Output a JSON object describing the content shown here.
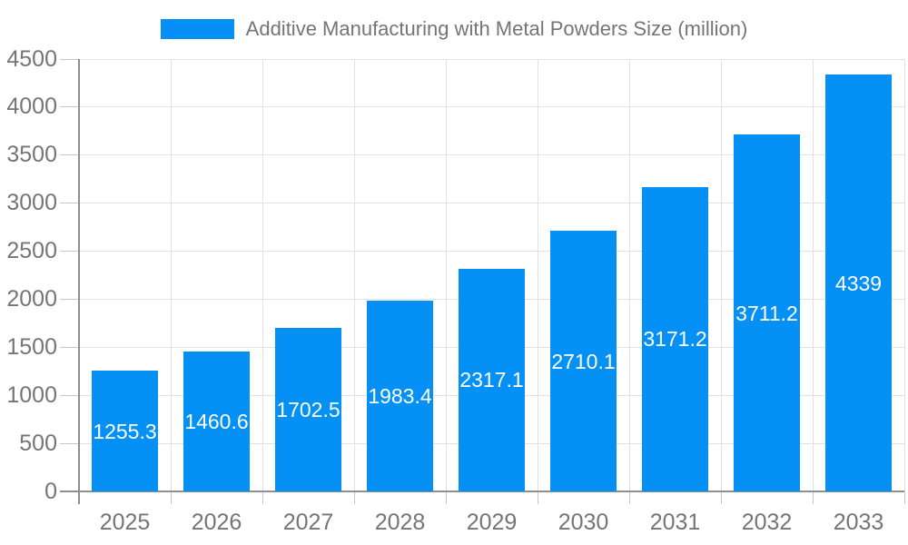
{
  "chart_data": {
    "type": "bar",
    "title": "Additive Manufacturing with Metal Powders Size (million)",
    "legend": [
      {
        "label": "Additive Manufacturing with Metal Powders Size (million)",
        "color": "#0590f5"
      }
    ],
    "legend_position": "top",
    "categories": [
      "2025",
      "2026",
      "2027",
      "2028",
      "2029",
      "2030",
      "2031",
      "2032",
      "2033"
    ],
    "values": [
      1255.3,
      1460.6,
      1702.5,
      1983.4,
      2317.1,
      2710.1,
      3171.2,
      3711.2,
      4339
    ],
    "value_labels": [
      "1255.3",
      "1460.6",
      "1702.5",
      "1983.4",
      "2317.1",
      "2710.1",
      "3171.2",
      "3711.2",
      "4339"
    ],
    "xlabel": "",
    "ylabel": "",
    "ylim": [
      0,
      4500
    ],
    "ytick_step": 500,
    "yticks": [
      "0",
      "500",
      "1000",
      "1500",
      "2000",
      "2500",
      "3000",
      "3500",
      "4000",
      "4500"
    ],
    "grid": true,
    "colors": {
      "bar": "#0590f5",
      "text": "#757575",
      "value_label": "#ffffff",
      "gridline": "#e2e2e2",
      "tick": "#c6c6c6",
      "axis": "#8f8f8f",
      "background": "#ffffff"
    }
  }
}
